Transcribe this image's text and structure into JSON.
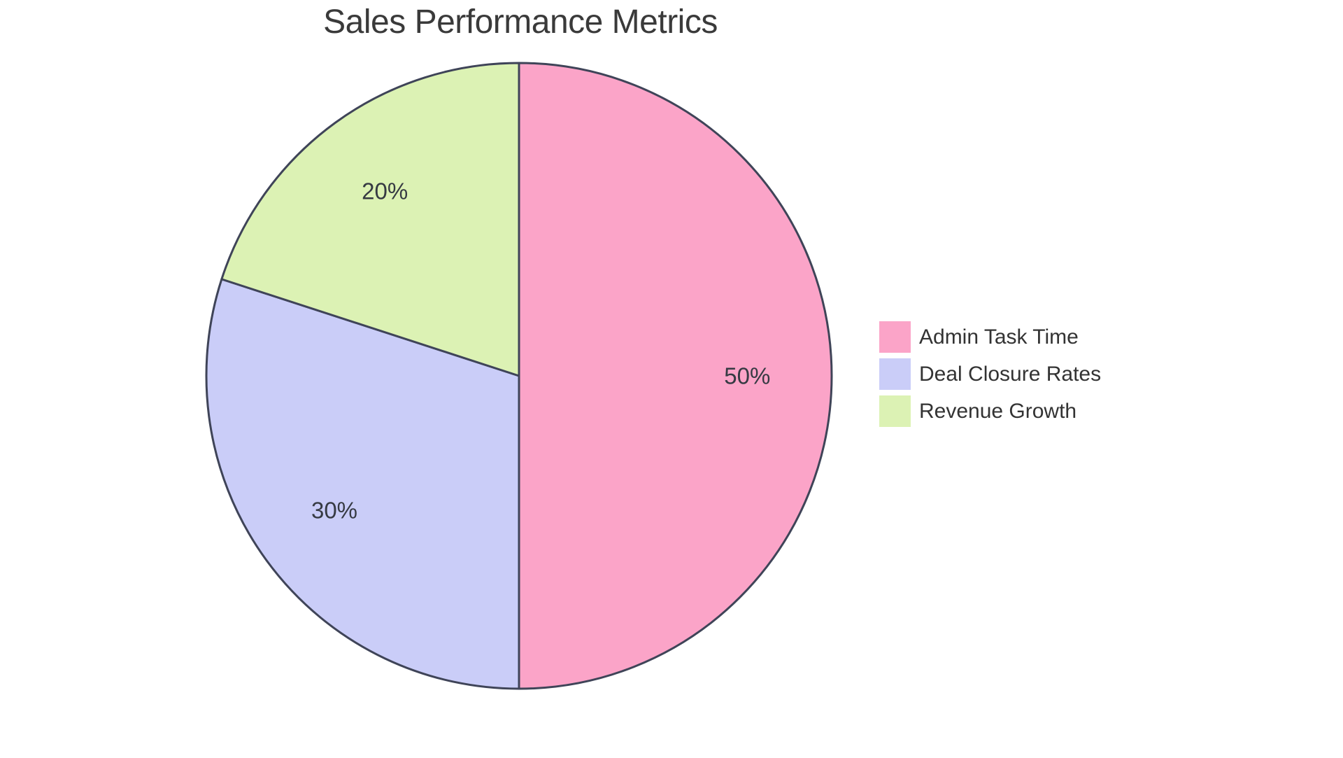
{
  "title": "Sales Performance Metrics",
  "chart_data": {
    "type": "pie",
    "title": "Sales Performance Metrics",
    "series": [
      {
        "label": "Admin Task Time",
        "value": 50,
        "pct_label": "50%",
        "color": "#FBA4C8"
      },
      {
        "label": "Deal Closure Rates",
        "value": 30,
        "pct_label": "30%",
        "color": "#CACDF8"
      },
      {
        "label": "Revenue Growth",
        "value": 20,
        "pct_label": "20%",
        "color": "#DCF2B4"
      }
    ],
    "start_angle": "top",
    "direction": "clockwise",
    "legend_position": "right",
    "slice_border_color": "#3F4458",
    "slice_label_color": "#363A43",
    "background_color": "#FFFFFF"
  }
}
